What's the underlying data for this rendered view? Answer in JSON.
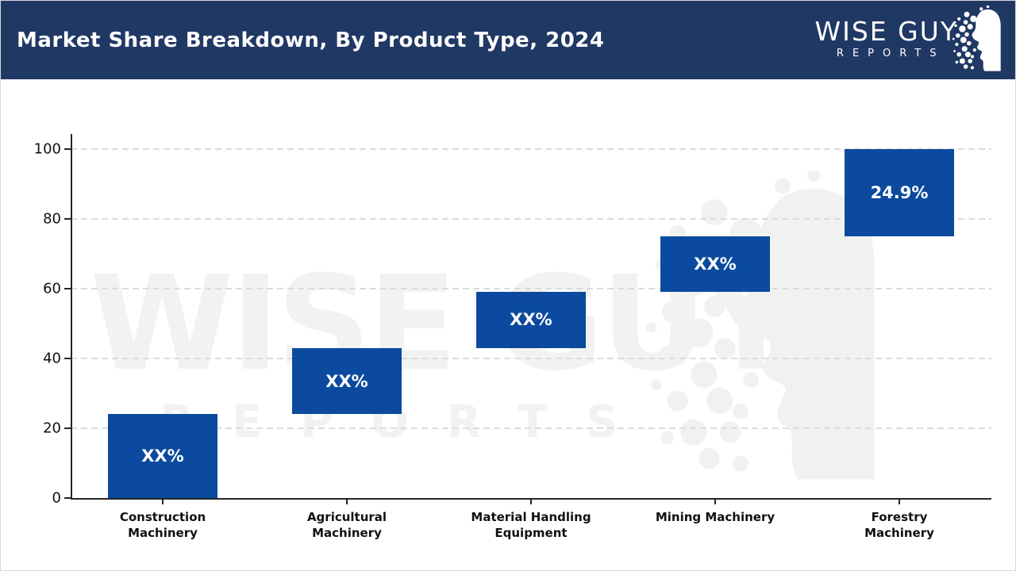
{
  "header": {
    "title": "Market Share Breakdown, By Product Type, 2024",
    "logo": {
      "line1": "WISE GUY",
      "line2": "REPORTS"
    }
  },
  "watermark": {
    "line1": "WISE GUY",
    "line2": "REPORTS"
  },
  "chart_data": {
    "type": "bar",
    "subtype": "waterfall",
    "title": "Market Share Breakdown, By Product Type, 2024",
    "xlabel": "",
    "ylabel": "",
    "ylim": [
      0,
      105
    ],
    "yticks": [
      0,
      20,
      40,
      60,
      80,
      100
    ],
    "grid": "horizontal-dashed",
    "legend": "none",
    "bar_color": "#0B4A9E",
    "bar_label_color": "#ffffff",
    "categories": [
      "Construction Machinery",
      "Agricultural Machinery",
      "Material Handling Equipment",
      "Mining Machinery",
      "Forestry Machinery"
    ],
    "category_label_lines": [
      [
        "Construction",
        "Machinery"
      ],
      [
        "Agricultural",
        "Machinery"
      ],
      [
        "Material Handling",
        "Equipment"
      ],
      [
        "Mining Machinery"
      ],
      [
        "Forestry Machinery"
      ]
    ],
    "segments": [
      {
        "category": "Construction Machinery",
        "start": 0,
        "end": 24.0,
        "value_label": "XX%"
      },
      {
        "category": "Agricultural Machinery",
        "start": 24.0,
        "end": 43.0,
        "value_label": "XX%"
      },
      {
        "category": "Material Handling Equipment",
        "start": 43.0,
        "end": 59.2,
        "value_label": "XX%"
      },
      {
        "category": "Mining Machinery",
        "start": 59.2,
        "end": 75.1,
        "value_label": "XX%"
      },
      {
        "category": "Forestry Machinery",
        "start": 75.1,
        "end": 100.0,
        "value_label": "24.9%"
      }
    ]
  }
}
